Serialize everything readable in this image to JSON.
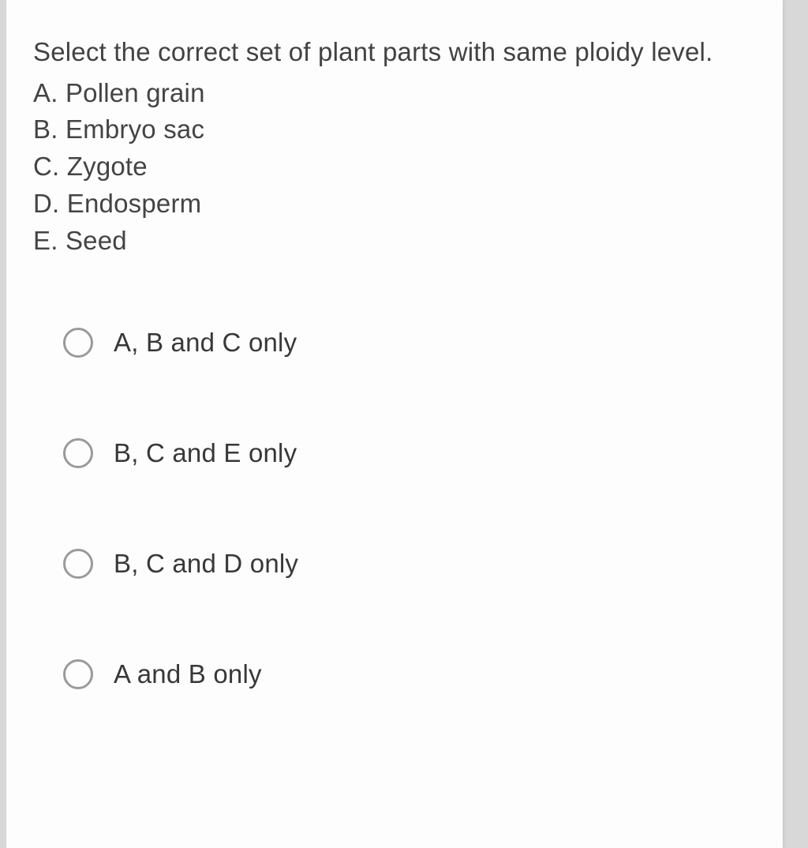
{
  "question": "Select the correct set of plant parts with same ploidy level.",
  "items": [
    "A. Pollen grain",
    "B. Embryo sac",
    "C. Zygote",
    "D. Endosperm",
    "E. Seed"
  ],
  "options": [
    "A, B and C only",
    "B, C and E only",
    "B, C and D only",
    "A and B only"
  ]
}
